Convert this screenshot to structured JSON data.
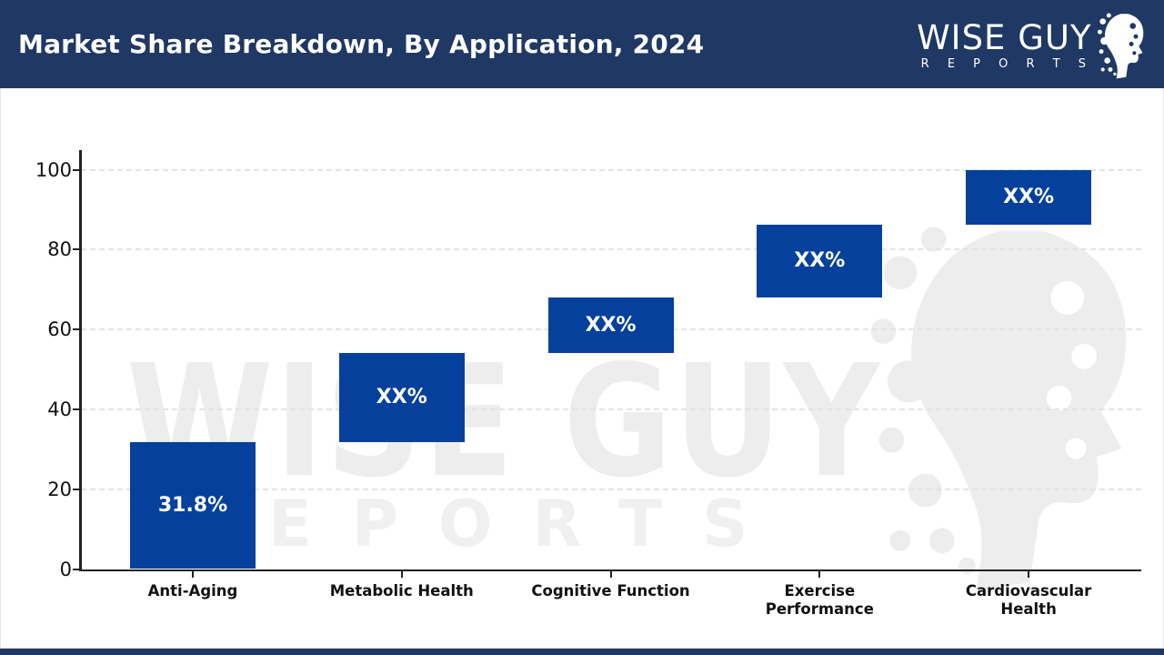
{
  "header": {
    "title": "Market Share Breakdown, By Application, 2024",
    "logo": {
      "line1": "WISE GUY",
      "line2": "R E P O R T S"
    }
  },
  "watermark": {
    "line1": "WISE GUY",
    "line2": "REPORTS"
  },
  "chart_data": {
    "type": "bar",
    "subtype": "waterfall",
    "title": "Market Share Breakdown, By Application, 2024",
    "categories": [
      "Anti-Aging",
      "Metabolic Health",
      "Cognitive Function",
      "Exercise Performance",
      "Cardiovascular Health"
    ],
    "category_lines": [
      [
        "Anti-Aging"
      ],
      [
        "Metabolic Health"
      ],
      [
        "Cognitive Function"
      ],
      [
        "Exercise",
        "Performance"
      ],
      [
        "Cardiovascular",
        "Health"
      ]
    ],
    "segments": [
      {
        "category": "Anti-Aging",
        "start": 0,
        "end": 31.8,
        "label": "31.8%"
      },
      {
        "category": "Metabolic Health",
        "start": 31.8,
        "end": 54.2,
        "label": "XX%"
      },
      {
        "category": "Cognitive Function",
        "start": 54.2,
        "end": 68.0,
        "label": "XX%"
      },
      {
        "category": "Exercise Performance",
        "start": 68.0,
        "end": 86.3,
        "label": "XX%"
      },
      {
        "category": "Cardiovascular Health",
        "start": 86.3,
        "end": 100.0,
        "label": "XX%"
      }
    ],
    "yticks": [
      0,
      20,
      40,
      60,
      80,
      100
    ],
    "ylim": [
      0,
      105
    ],
    "xlabel": "",
    "ylabel": "",
    "grid": "horizontal-dashed",
    "legend": null,
    "bar_color": "#05419c",
    "bar_label_color": "#ffffff",
    "axis_color": "#222222",
    "grid_color": "#e3e3e3"
  },
  "colors": {
    "header_bg": "#1f3864",
    "watermark": "#ededed",
    "background": "#ffffff"
  }
}
